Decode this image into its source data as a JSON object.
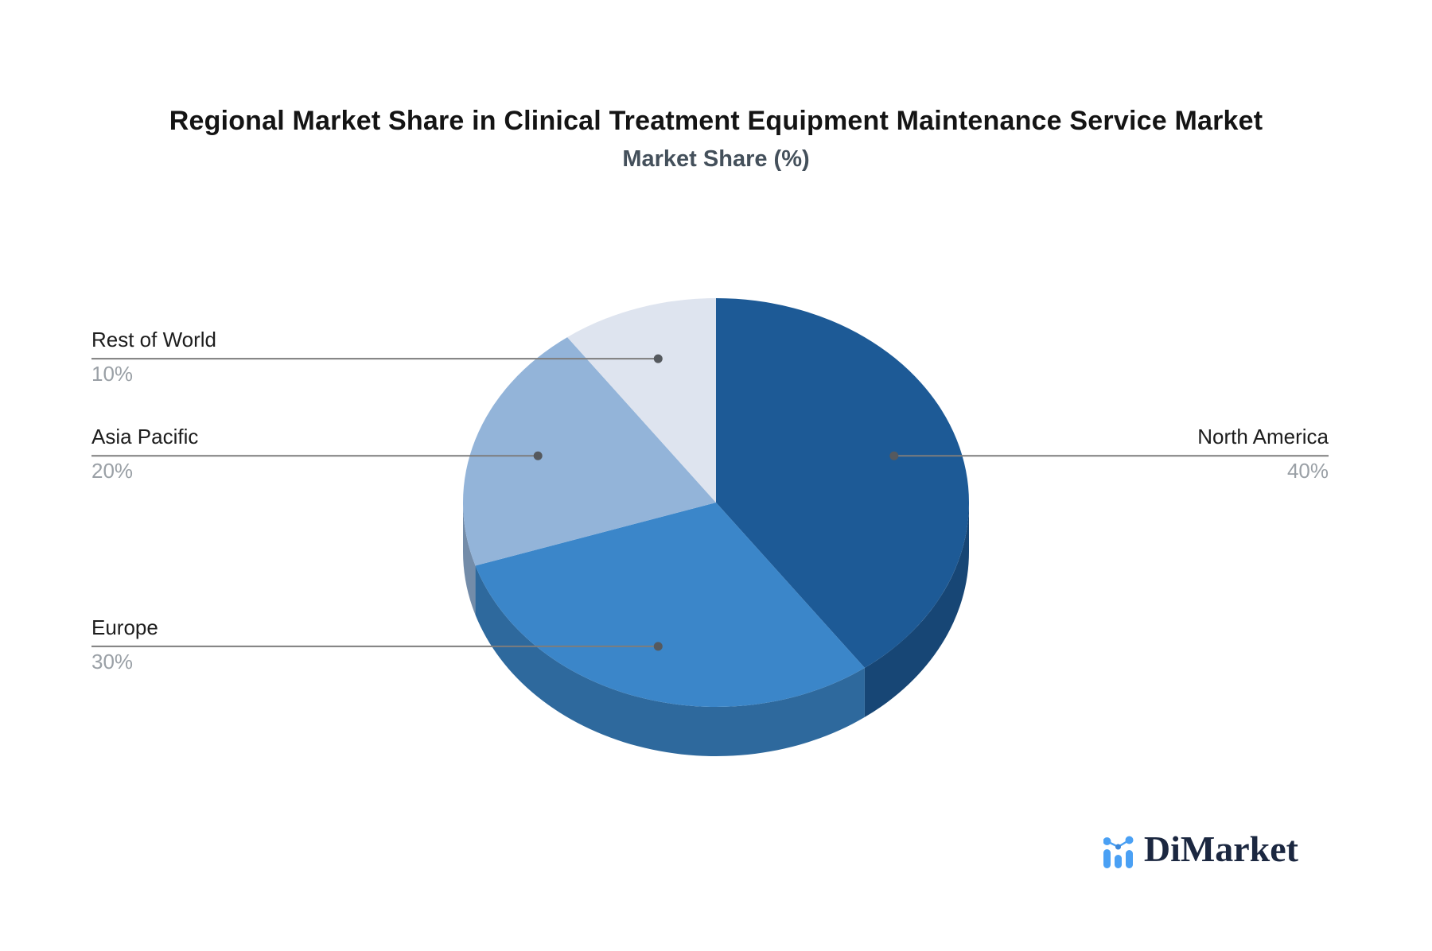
{
  "header": {
    "title": "Regional Market Share in Clinical Treatment Equipment Maintenance Service Market",
    "subtitle": "Market Share (%)"
  },
  "chart_data": {
    "type": "pie",
    "style": "3d",
    "title": "Regional Market Share in Clinical Treatment Equipment Maintenance Service Market",
    "subtitle": "Market Share (%)",
    "unit": "%",
    "start_angle": 0,
    "legend": "none",
    "series": [
      {
        "name": "North America",
        "value": 40,
        "percent_label": "40%",
        "color": "#1d5a96",
        "label_side": "right"
      },
      {
        "name": "Europe",
        "value": 30,
        "percent_label": "30%",
        "color": "#3b86c9",
        "label_side": "left"
      },
      {
        "name": "Asia Pacific",
        "value": 20,
        "percent_label": "20%",
        "color": "#93b4d9",
        "label_side": "left"
      },
      {
        "name": "Rest of World",
        "value": 10,
        "percent_label": "10%",
        "color": "#dee4ef",
        "label_side": "left"
      }
    ],
    "label_name_color": "#1d1d1d",
    "label_value_color": "#9aa0a6",
    "leader_line_color": "#7d7d7d",
    "leader_dot_color": "#55595e"
  },
  "branding": {
    "logo_text": "DiMarket",
    "logo_icon": "bar-line-chart-icon",
    "logo_icon_color": "#4aa0f4",
    "logo_icon_accent": "#3a86d9",
    "logo_text_color": "#1b2740"
  }
}
